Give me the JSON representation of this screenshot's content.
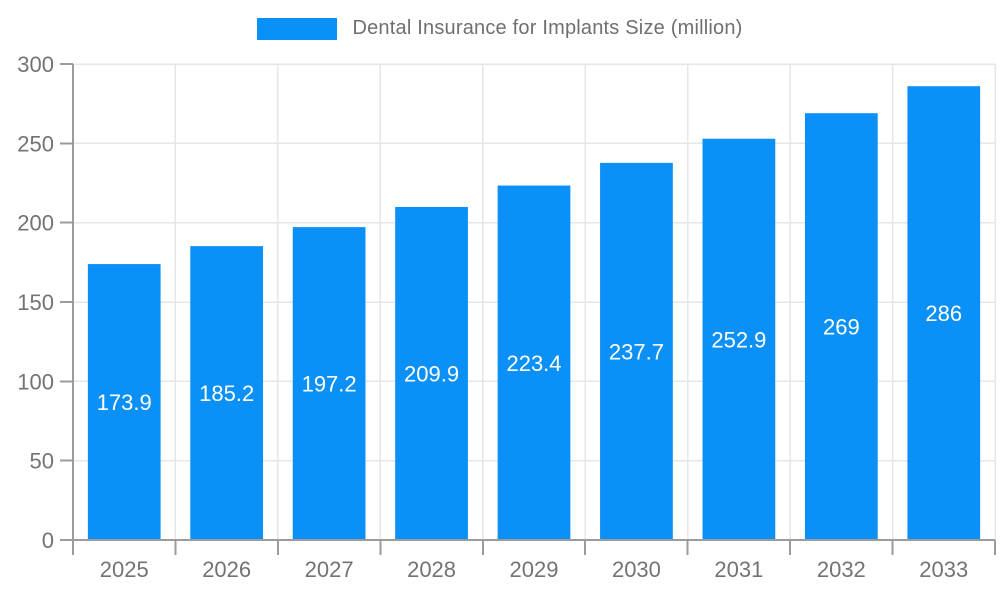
{
  "chart_data": {
    "type": "bar",
    "title": "Dental Insurance for Implants Size (million)",
    "categories": [
      "2025",
      "2026",
      "2027",
      "2028",
      "2029",
      "2030",
      "2031",
      "2032",
      "2033"
    ],
    "values": [
      173.9,
      185.2,
      197.2,
      209.9,
      223.4,
      237.7,
      252.9,
      269,
      286
    ],
    "xlabel": "",
    "ylabel": "",
    "ylim": [
      0,
      300
    ],
    "yticks": [
      0,
      50,
      100,
      150,
      200,
      250,
      300
    ],
    "grid": true,
    "legend_position": "top",
    "colors": {
      "bar": "#0a90f6",
      "bar_label": "#ffffff",
      "axis": "#9b9b9b",
      "grid": "#e6e6e6",
      "tick_label": "#737373",
      "legend_text": "#6f6f6f"
    }
  }
}
